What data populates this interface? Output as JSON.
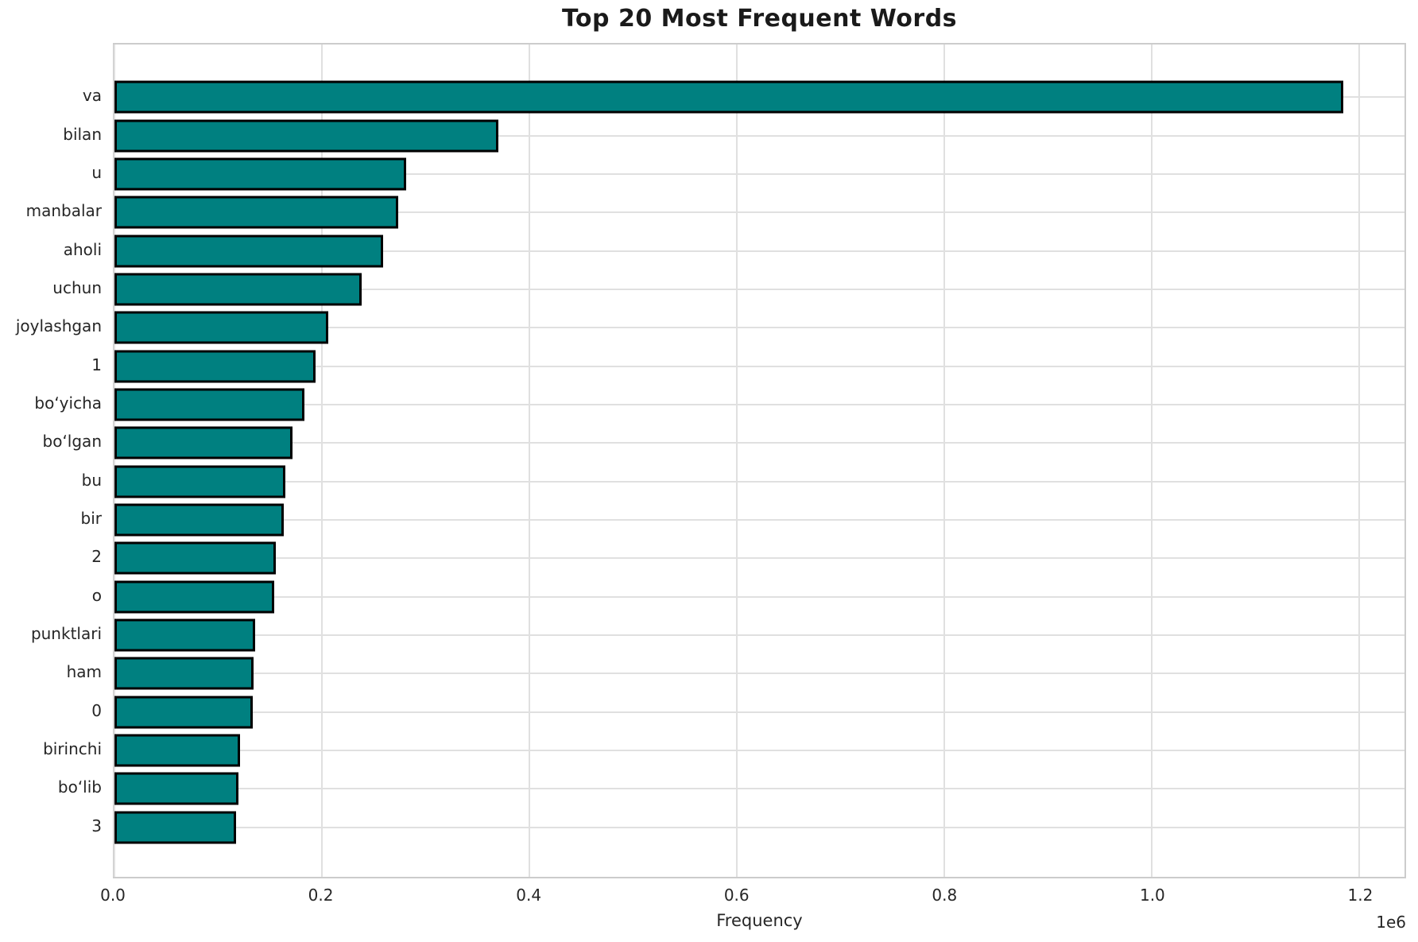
{
  "title": "Top 20 Most Frequent Words",
  "x_axis": {
    "label": "Frequency",
    "offset_label": "1e6",
    "tick_labels": [
      "0.0",
      "0.2",
      "0.4",
      "0.6",
      "0.8",
      "1.0",
      "1.2"
    ],
    "tick_values": [
      0,
      200000,
      400000,
      600000,
      800000,
      1000000,
      1200000
    ]
  },
  "chart_data": {
    "type": "bar",
    "orientation": "horizontal",
    "title": "Top 20 Most Frequent Words",
    "xlabel": "Frequency",
    "ylabel": "",
    "categories": [
      "va",
      "bilan",
      "u",
      "manbalar",
      "aholi",
      "uchun",
      "joylashgan",
      "1",
      "boʻyicha",
      "boʻlgan",
      "bu",
      "bir",
      "2",
      "o",
      "punktlari",
      "ham",
      "0",
      "birinchi",
      "boʻlib",
      "3"
    ],
    "values": [
      1185000,
      370000,
      281000,
      274000,
      259000,
      238000,
      206000,
      194000,
      183000,
      171500,
      164500,
      163000,
      155500,
      154000,
      135500,
      134000,
      133500,
      121000,
      119500,
      117000
    ],
    "xlim": [
      0,
      1244000
    ],
    "x_offset_factor": "1e6",
    "grid": "both",
    "legend": "none",
    "bar_color": "#008080",
    "bar_edge_color": "#000000"
  }
}
